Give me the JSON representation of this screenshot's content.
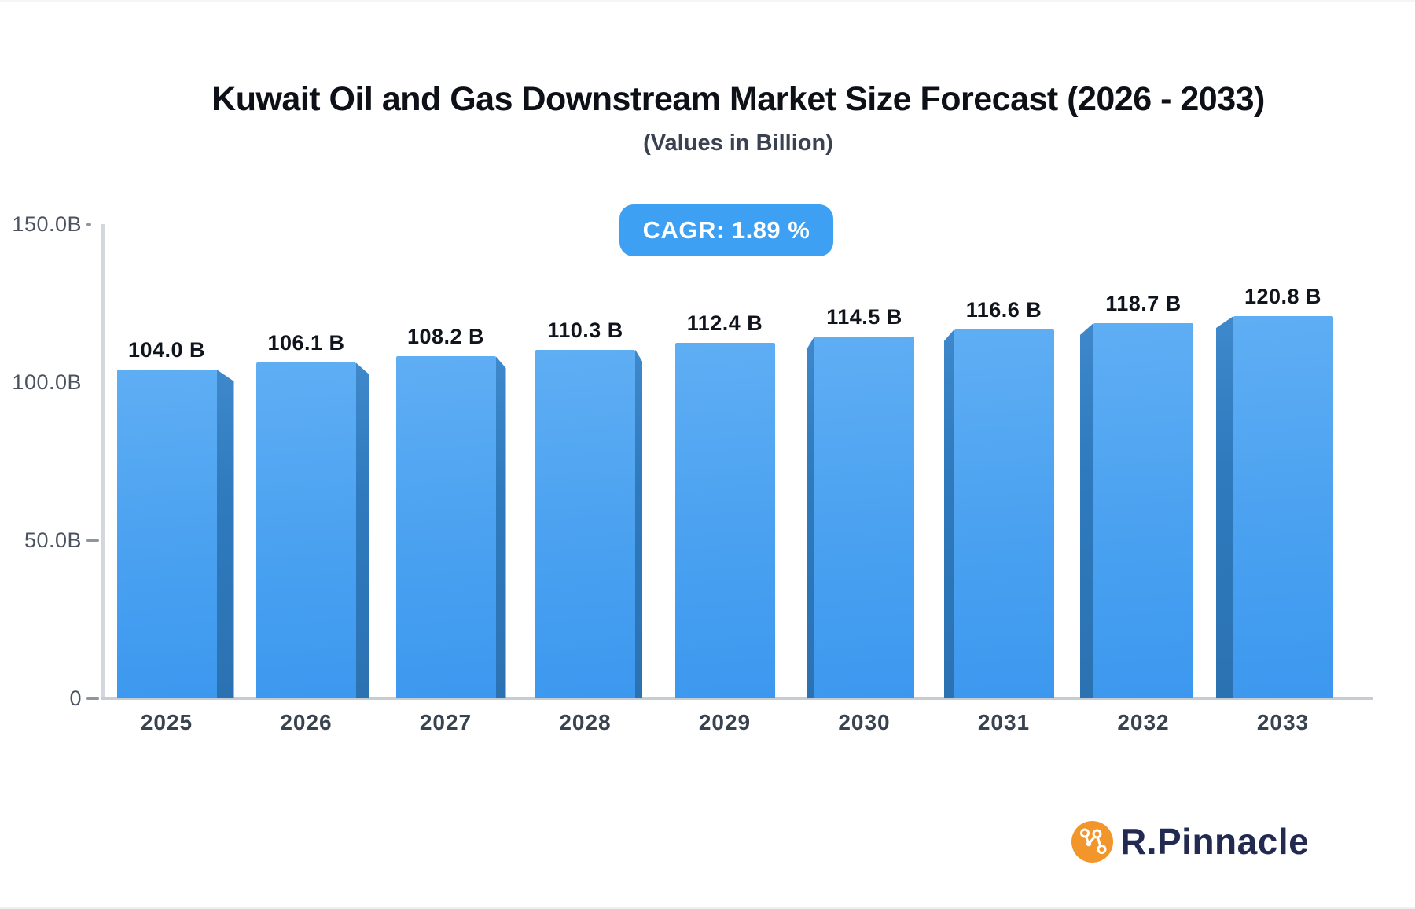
{
  "header": {
    "title": "Kuwait Oil and Gas Downstream Market Size Forecast (2026 - 2033)",
    "subtitle": "(Values in Billion)"
  },
  "badge": {
    "label": "CAGR: 1.89 %"
  },
  "chart_data": {
    "type": "bar",
    "title": "Kuwait Oil and Gas Downstream Market Size Forecast (2026 - 2033)",
    "subtitle": "(Values in Billion)",
    "annotation": "CAGR: 1.89 %",
    "unit": "Billion",
    "categories": [
      "2025",
      "2026",
      "2027",
      "2028",
      "2029",
      "2030",
      "2031",
      "2032",
      "2033"
    ],
    "values": [
      104.0,
      106.1,
      108.2,
      110.3,
      112.4,
      114.5,
      116.6,
      118.7,
      120.8
    ],
    "bar_labels": [
      "104.0 B",
      "106.1 B",
      "108.2 B",
      "110.3 B",
      "112.4 B",
      "114.5 B",
      "116.6 B",
      "118.7 B",
      "120.8 B"
    ],
    "ylim": [
      0,
      150
    ],
    "yticks": [
      {
        "label": "150.0B",
        "value": 150,
        "tick_w": 6
      },
      {
        "label": "100.0B",
        "value": 100,
        "tick_w": 0
      },
      {
        "label": "50.0B",
        "value": 50,
        "tick_w": 16
      },
      {
        "label": "0",
        "value": 0,
        "tick_w": 16
      }
    ],
    "grid": false,
    "legend": false,
    "bar_style": {
      "face_top": "#5FAEF4",
      "face_bottom": "#3C98EF",
      "side": "#2E7ABD",
      "effect": "3d-side-faces-toward-center"
    }
  },
  "footer": {
    "brand": "R.Pinnacle",
    "logo_icon": "network-nodes-icon",
    "logo_color": "#F2952B",
    "text_color": "#232A51"
  },
  "colors": {
    "badge_bg": "#3EA0F2",
    "badge_text": "#FFFFFF",
    "y_axis": "#D3D6DC",
    "baseline": "#C7CCD3",
    "tick": "#8E959F",
    "title": "#0D1117",
    "subtitle": "#3A4150",
    "value_label": "#10151D",
    "year_label": "#39434F",
    "ytick_label": "#4C5360"
  }
}
